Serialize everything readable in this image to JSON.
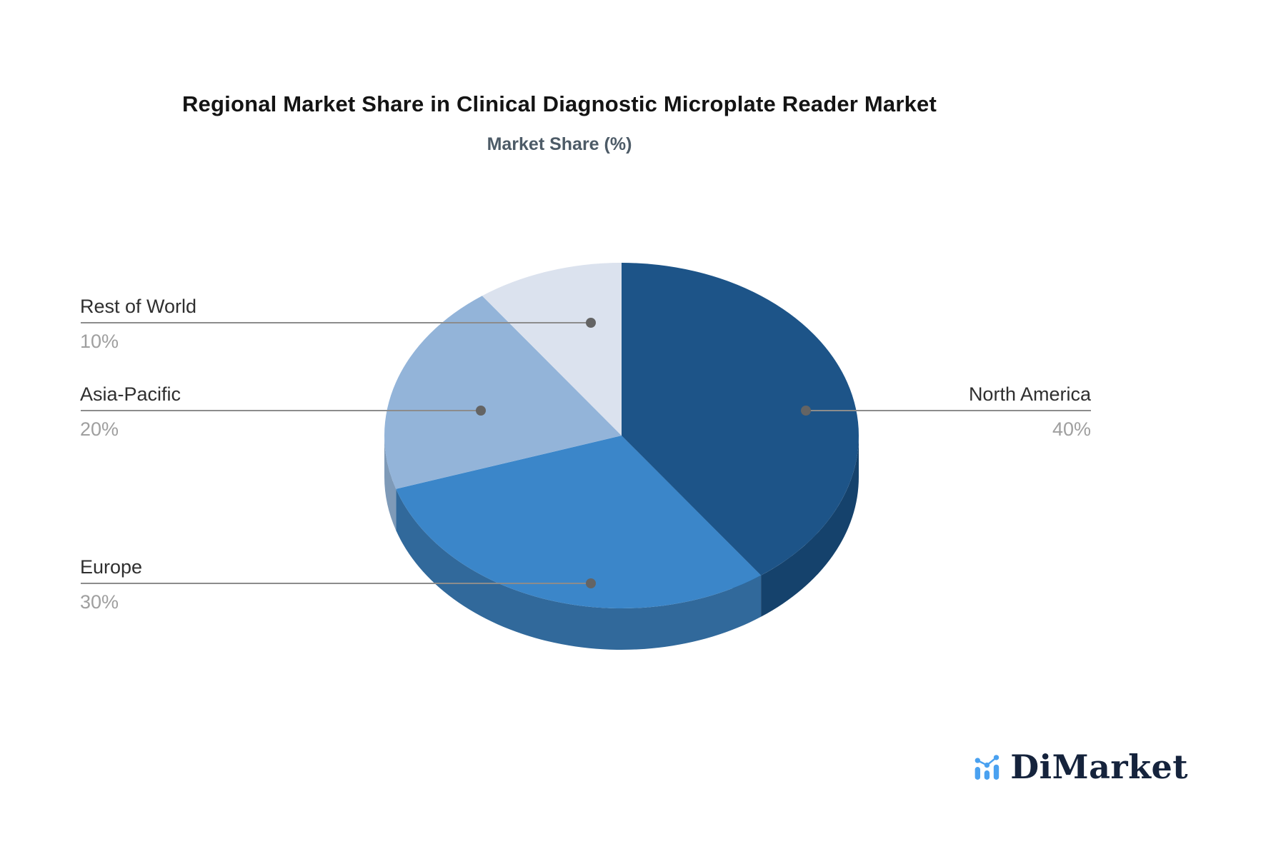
{
  "chart_data": {
    "type": "pie",
    "style": "3d",
    "title": "Regional Market Share in Clinical Diagnostic Microplate Reader Market",
    "subtitle": "Market Share (%)",
    "unit": "%",
    "direction": "clockwise",
    "start_angle_deg": 0,
    "slices": [
      {
        "label": "North America",
        "value": 40,
        "pct_label": "40%",
        "color": "#1d5488",
        "side_color": "#15426c"
      },
      {
        "label": "Europe",
        "value": 30,
        "pct_label": "30%",
        "color": "#3b86c9",
        "side_color": "#31699b"
      },
      {
        "label": "Asia-Pacific",
        "value": 20,
        "pct_label": "20%",
        "color": "#93b4d9",
        "side_color": "#7e9ab8"
      },
      {
        "label": "Rest of World",
        "value": 10,
        "pct_label": "10%",
        "color": "#dbe2ee",
        "side_color": "#c2cbd9"
      }
    ],
    "legend": "none",
    "leader_line_color": "#8c8c8c",
    "leader_dot_color": "#646464",
    "label_text_color": "#2f2f2f",
    "pct_text_color": "#9f9f9f"
  },
  "logo": {
    "text": "DiMarket",
    "icon": "bar-line-chart-icon",
    "bar_color": "#4aa1f0",
    "text_color": "#15233c"
  }
}
